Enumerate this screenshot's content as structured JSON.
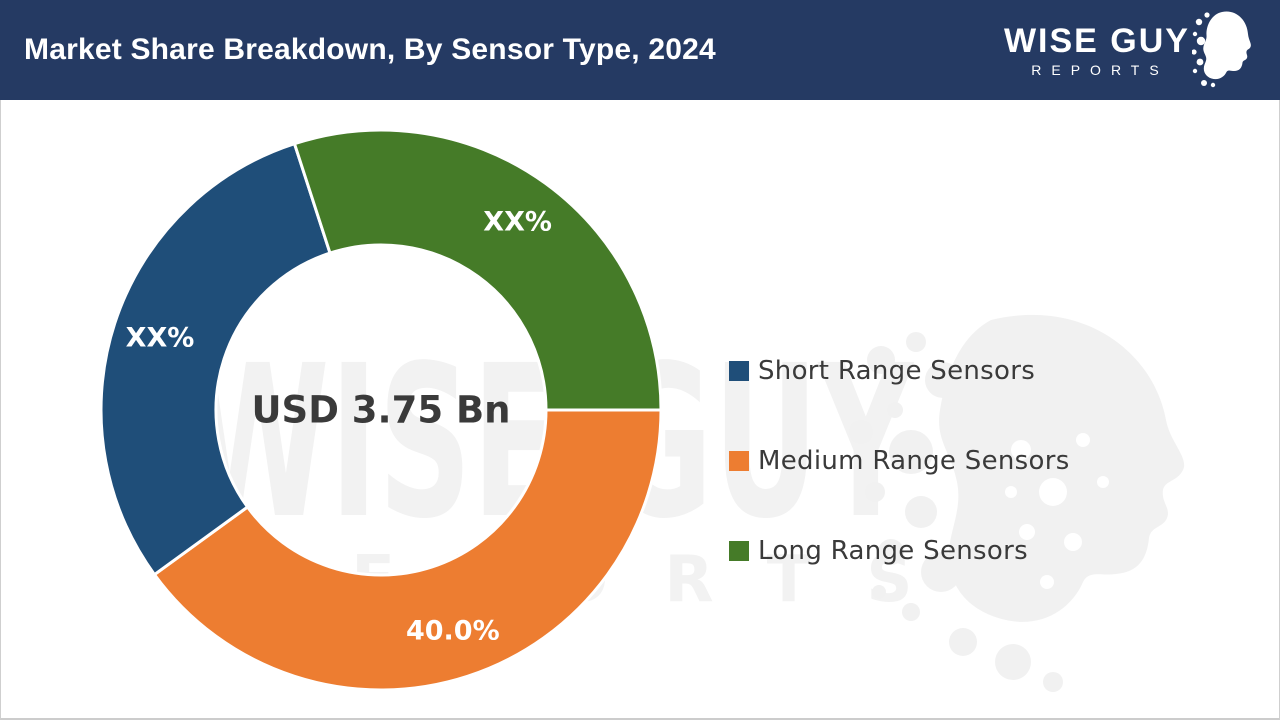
{
  "header": {
    "title": "Market Share Breakdown, By Sensor Type, 2024",
    "bg_color": "#253A63",
    "logo": {
      "line1": "WISE GUY",
      "line2": "REPORTS"
    }
  },
  "watermark": {
    "line1": "WISE GUY",
    "line2": "REPORTS"
  },
  "chart_data": {
    "type": "donut",
    "title": "Market Share Breakdown, By Sensor Type, 2024",
    "center_label": "USD 3.75 Bn",
    "start_angle_deg": 0,
    "direction": "clockwise",
    "segments": [
      {
        "name": "Medium Range Sensors",
        "label": "40.0%",
        "value_pct": 40,
        "color": "#ED7D31"
      },
      {
        "name": "Short Range Sensors",
        "label": "XX%",
        "value_pct": 30,
        "color": "#1F4E79"
      },
      {
        "name": "Long Range Sensors",
        "label": "XX%",
        "value_pct": 30,
        "color": "#457B28"
      }
    ],
    "legend_items": [
      {
        "name": "Short Range Sensors",
        "color": "#1F4E79"
      },
      {
        "name": "Medium Range Sensors",
        "color": "#ED7D31"
      },
      {
        "name": "Long Range Sensors",
        "color": "#457B28"
      }
    ],
    "legend_position": "right",
    "separator_color": "#FFFFFF",
    "label_color": "#FFFFFF",
    "center_label_color": "#3A3A3A"
  },
  "colors": {
    "header_bg": "#253A63",
    "border": "#CCCCCC",
    "watermark": "#F2F2F2",
    "watermark_head": "#F1F1F1"
  }
}
